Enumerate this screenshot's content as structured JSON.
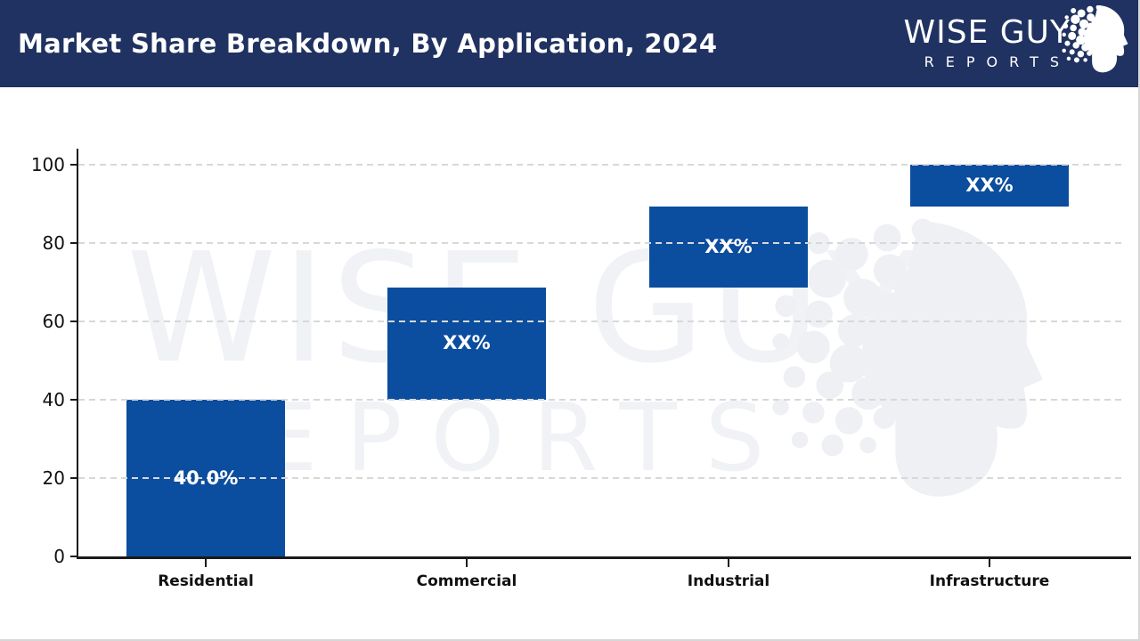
{
  "header": {
    "title": "Market Share Breakdown, By Application, 2024",
    "logo": {
      "line1": "WISE GUY",
      "line2": "REPORTS"
    }
  },
  "watermark": {
    "line1": "WISE GUY",
    "line2": "REPORTS"
  },
  "chart_data": {
    "type": "bar",
    "subtype": "waterfall",
    "title": "Market Share Breakdown, By Application, 2024",
    "categories": [
      "Residential",
      "Commercial",
      "Industrial",
      "Infrastructure"
    ],
    "bars": [
      {
        "category": "Residential",
        "start": 0,
        "end": 40,
        "label": "40.0%"
      },
      {
        "category": "Commercial",
        "start": 40,
        "end": 68.6,
        "label": "XX%"
      },
      {
        "category": "Industrial",
        "start": 68.6,
        "end": 89.3,
        "label": "XX%"
      },
      {
        "category": "Infrastructure",
        "start": 89.3,
        "end": 100,
        "label": "XX%"
      }
    ],
    "yticks": [
      0,
      20,
      40,
      60,
      80,
      100
    ],
    "ylim": [
      0,
      104
    ],
    "xlabel": "",
    "ylabel": "",
    "grid": "dashed-horizontal",
    "legend": "none"
  },
  "colors": {
    "header_bg": "#203261",
    "bar": "#0b4d9e",
    "grid": "#d8d8d8",
    "axis": "#1a1a1a",
    "tick_text": "#111111",
    "bar_label": "#ffffff",
    "title_text": "#ffffff",
    "watermark": "#f0f2f6"
  }
}
